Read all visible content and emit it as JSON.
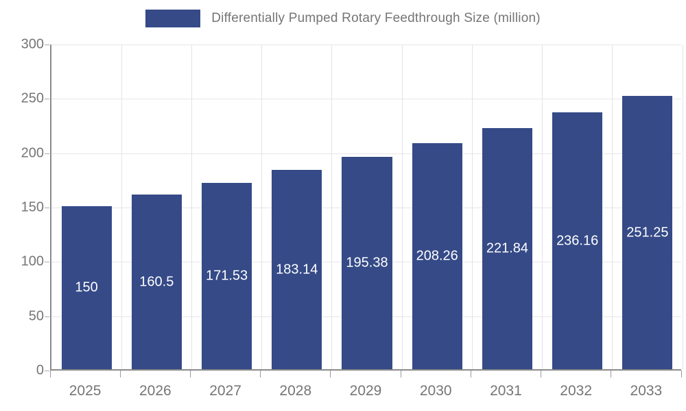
{
  "chart_data": {
    "type": "bar",
    "title": "Differentially Pumped Rotary Feedthrough Size (million)",
    "legend": {
      "position": "top",
      "entries": [
        "Differentially Pumped Rotary Feedthrough Size (million)"
      ]
    },
    "categories": [
      "2025",
      "2026",
      "2027",
      "2028",
      "2029",
      "2030",
      "2031",
      "2032",
      "2033"
    ],
    "values": [
      150,
      160.5,
      171.53,
      183.14,
      195.38,
      208.26,
      221.84,
      236.16,
      251.25
    ],
    "value_labels": [
      "150",
      "160.5",
      "171.53",
      "183.14",
      "195.38",
      "208.26",
      "221.84",
      "236.16",
      "251.25"
    ],
    "xlabel": "",
    "ylabel": "",
    "ylim": [
      0,
      300
    ],
    "yticks": [
      0,
      50,
      100,
      150,
      200,
      250,
      300
    ],
    "grid": true,
    "colors": {
      "bar": "#354a87",
      "value_label": "#ffffff",
      "axis_text": "#757575",
      "gridline": "#e6e6e6",
      "axis_line": "#8a8a8a"
    }
  }
}
